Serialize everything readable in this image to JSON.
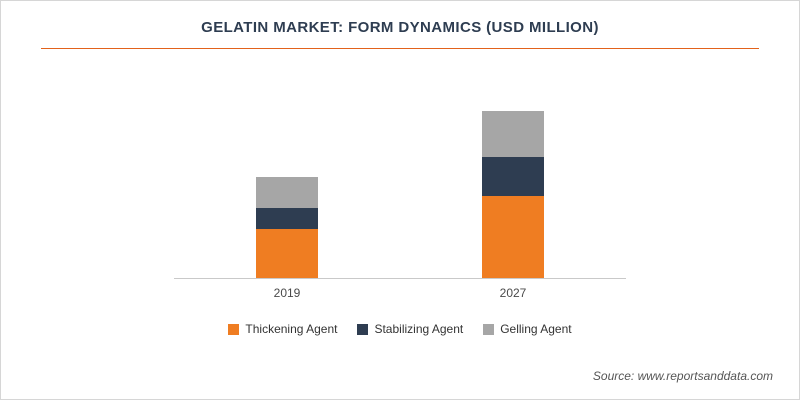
{
  "title": "GELATIN MARKET: FORM DYNAMICS (USD MILLION)",
  "source": "Source: www.reportsanddata.com",
  "colors": {
    "thickening": "#EF7D22",
    "stabilizing": "#2E3D51",
    "gelling": "#A6A6A6",
    "title": "#2E3D51",
    "rule": "#E2621B",
    "axis": "#C9C9C9"
  },
  "chart_data": {
    "type": "bar",
    "stacked": true,
    "title": "GELATIN MARKET: FORM DYNAMICS (USD MILLION)",
    "xlabel": "",
    "ylabel": "USD Million",
    "categories": [
      "2019",
      "2027"
    ],
    "series": [
      {
        "name": "Thickening Agent",
        "color_key": "thickening",
        "values": [
          490,
          820
        ]
      },
      {
        "name": "Stabilizing Agent",
        "color_key": "stabilizing",
        "values": [
          210,
          390
        ]
      },
      {
        "name": "Gelling Agent",
        "color_key": "gelling",
        "values": [
          310,
          460
        ]
      }
    ],
    "ylim": [
      0,
      1750
    ],
    "grid": false,
    "y_axis_shown": false,
    "legend_position": "bottom"
  }
}
